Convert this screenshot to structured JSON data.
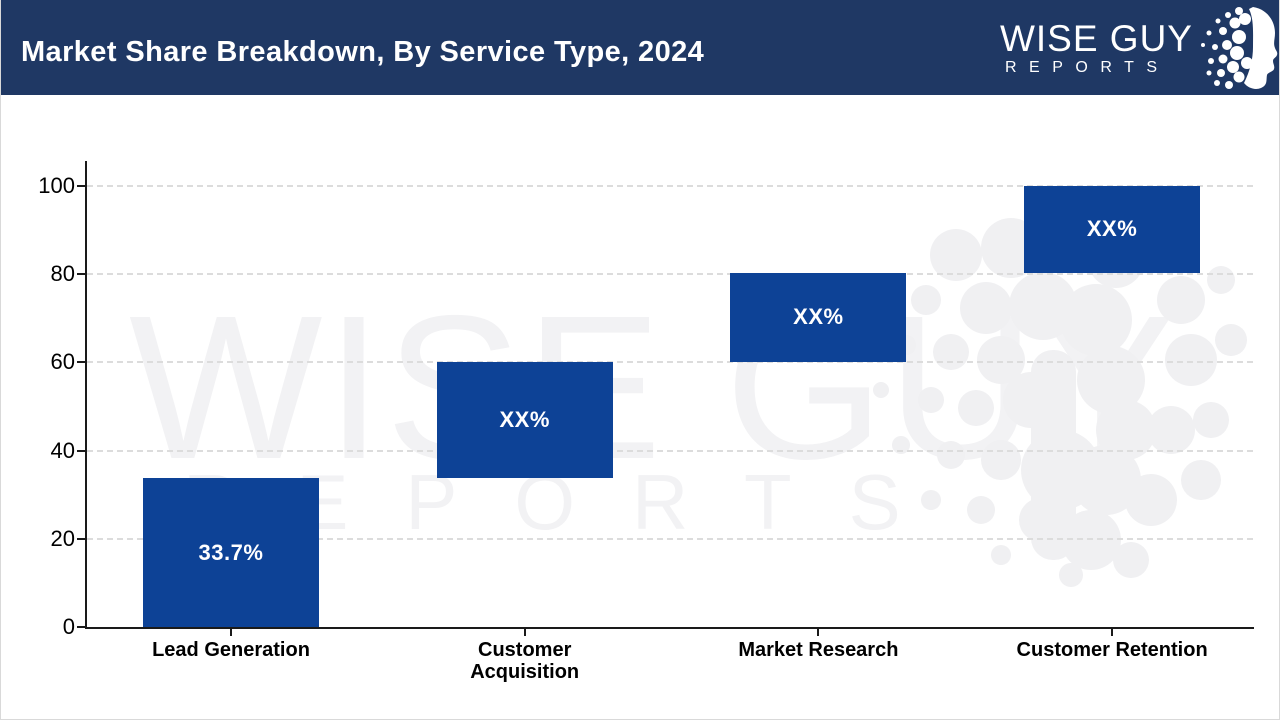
{
  "header": {
    "title": "Market Share Breakdown, By Service Type, 2024",
    "logo": {
      "wordmark": "WISE GUY",
      "subtitle": "REPORTS"
    }
  },
  "watermark": {
    "wordmark": "WISE GUY",
    "subtitle": "REPORTS"
  },
  "chart_data": {
    "type": "bar",
    "variant": "waterfall-stacked",
    "title": "Market Share Breakdown, By Service Type, 2024",
    "categories": [
      "Lead Generation",
      "Customer\nAcquisition",
      "Market Research",
      "Customer Retention"
    ],
    "segments": [
      {
        "category": "Lead Generation",
        "start": 0,
        "end": 33.7,
        "label": "33.7%"
      },
      {
        "category": "Customer Acquisition",
        "start": 33.7,
        "end": 60,
        "label": "XX%"
      },
      {
        "category": "Market Research",
        "start": 60.2,
        "end": 80.3,
        "label": "XX%"
      },
      {
        "category": "Customer Retention",
        "start": 80.3,
        "end": 100,
        "label": "XX%"
      }
    ],
    "yticks": [
      0,
      20,
      40,
      60,
      80,
      100
    ],
    "ylim": [
      0,
      105
    ],
    "legend": null,
    "grid": {
      "horizontal": true,
      "style": "dashed"
    },
    "colors": {
      "bar": "#0d4296",
      "bar_label": "#ffffff",
      "header_bg": "#1f3864",
      "watermark": "#f2f2f4",
      "gridline": "#dcdcdc",
      "axis": "#1a1a1a"
    }
  }
}
